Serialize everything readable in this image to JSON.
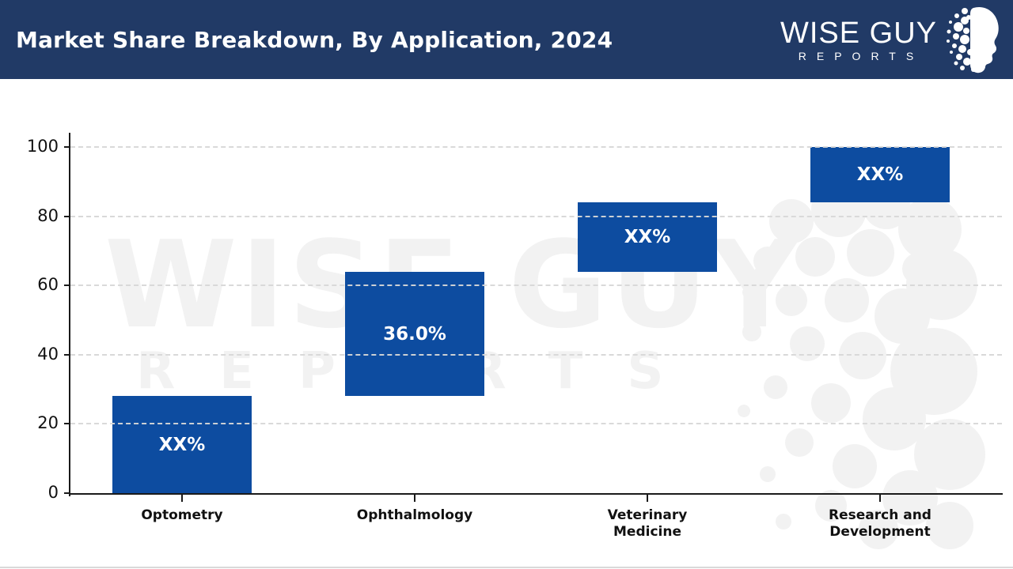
{
  "header": {
    "title": "Market Share Breakdown, By Application, 2024",
    "logo": {
      "line1": "WISE GUY",
      "line2": "REPORTS"
    }
  },
  "watermark": {
    "line1": "WISE GUY",
    "line2": "REPORTS"
  },
  "chart_data": {
    "type": "bar",
    "subtype": "floating-waterfall",
    "title": "Market Share Breakdown, By Application, 2024",
    "categories": [
      "Optometry",
      "Ophthalmology",
      "Veterinary\nMedicine",
      "Research and\nDevelopment"
    ],
    "values": [
      28,
      36,
      20,
      16
    ],
    "segments": [
      {
        "category": "Optometry",
        "start": 0,
        "end": 28,
        "label": "XX%"
      },
      {
        "category": "Ophthalmology",
        "start": 28,
        "end": 64,
        "label": "36.0%"
      },
      {
        "category": "Veterinary Medicine",
        "start": 64,
        "end": 84,
        "label": "XX%"
      },
      {
        "category": "Research and Development",
        "start": 84,
        "end": 100,
        "label": "XX%"
      }
    ],
    "ylim": [
      0,
      100
    ],
    "yticks": [
      0,
      20,
      40,
      60,
      80,
      100
    ],
    "xlabel": "",
    "ylabel": "",
    "grid": "horizontal-dashed",
    "legend": "none",
    "bar_color": "#0d4ca0",
    "bar_label_color": "#ffffff"
  },
  "colors": {
    "header_bg": "#213a66",
    "bar": "#0d4ca0",
    "axis": "#1a1a1a",
    "gridline": "#d7d7d7",
    "watermark": "#f2f2f2",
    "background": "#ffffff"
  }
}
